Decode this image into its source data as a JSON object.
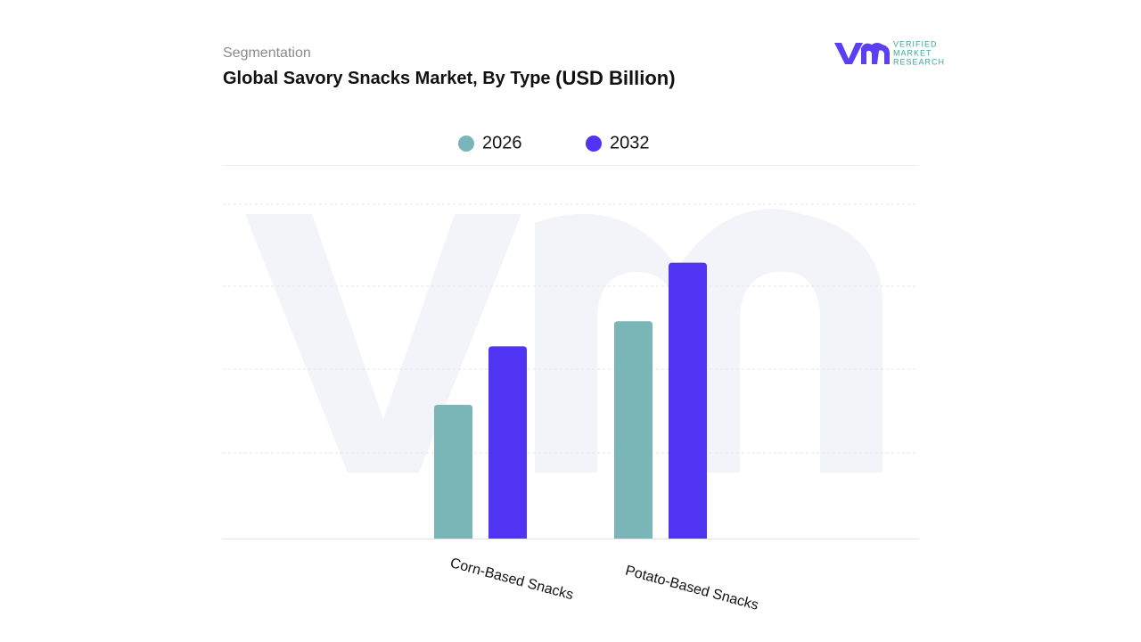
{
  "subtitle": "Segmentation",
  "logo_text": [
    "VERIFIED",
    "MARKET",
    "RESEARCH"
  ],
  "chart_data": {
    "type": "bar",
    "title": "Global Savory Snacks Market, By Type",
    "unit": "(USD Billion)",
    "categories": [
      "Corn-Based Snacks",
      "Potato-Based Snacks"
    ],
    "series": [
      {
        "name": "2026",
        "color": "#7ab5b8",
        "values": [
          1.6,
          2.6
        ]
      },
      {
        "name": "2032",
        "color": "#4f35f3",
        "values": [
          2.3,
          3.3
        ]
      }
    ],
    "ylim": [
      0,
      4
    ]
  }
}
